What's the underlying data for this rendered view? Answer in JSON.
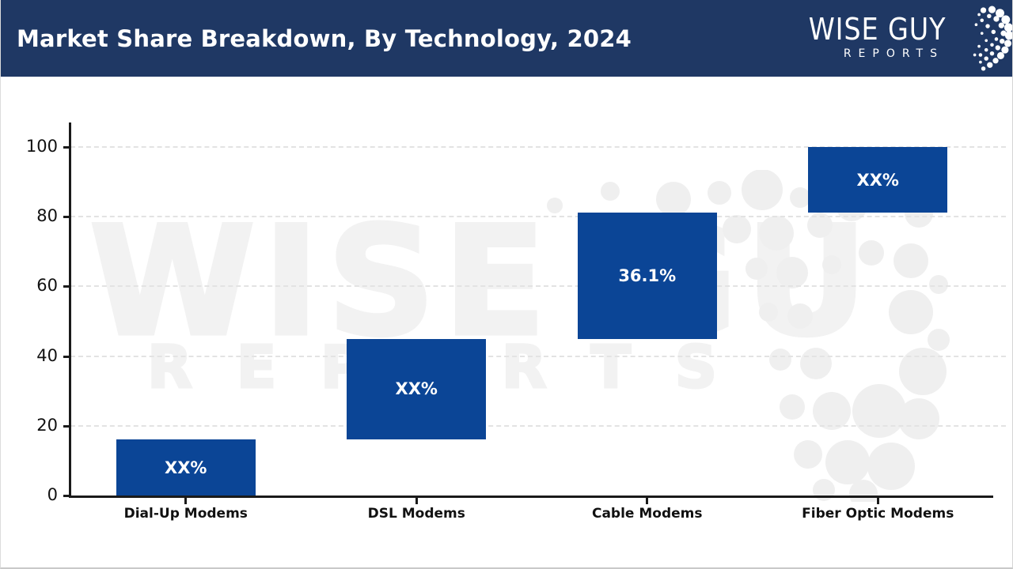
{
  "header": {
    "title": "Market Share Breakdown, By Technology, 2024",
    "bg_color": "#1F3864",
    "logo_line1": "WISE GUY",
    "logo_line2": "REPORTS"
  },
  "watermark": {
    "line1": "WISE GU",
    "line2": "R E P O R T S"
  },
  "chart_data": {
    "type": "bar",
    "subtype": "waterfall",
    "title": "Market Share Breakdown, By Technology, 2024",
    "categories": [
      "Dial-Up Modems",
      "DSL Modems",
      "Cable Modems",
      "Fiber Optic Modems"
    ],
    "segments": [
      {
        "category": "Dial-Up Modems",
        "start": 0,
        "end": 16,
        "label": "XX%"
      },
      {
        "category": "DSL Modems",
        "start": 16,
        "end": 45,
        "label": "XX%"
      },
      {
        "category": "Cable Modems",
        "start": 45,
        "end": 81.1,
        "label": "36.1%"
      },
      {
        "category": "Fiber Optic Modems",
        "start": 81.1,
        "end": 100,
        "label": "XX%"
      }
    ],
    "yticks": [
      0,
      20,
      40,
      60,
      80,
      100
    ],
    "ylim": [
      0,
      107
    ],
    "xlabel": "",
    "ylabel": "",
    "bar_color": "#0B4596",
    "grid": "horizontal-dashed",
    "legend": "none"
  }
}
